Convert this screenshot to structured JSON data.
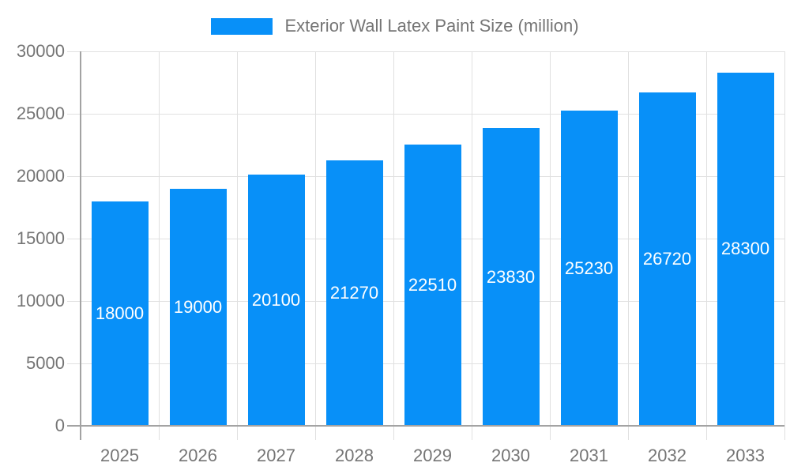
{
  "chart_data": {
    "type": "bar",
    "legend": "Exterior Wall Latex Paint Size (million)",
    "categories": [
      "2025",
      "2026",
      "2027",
      "2028",
      "2029",
      "2030",
      "2031",
      "2032",
      "2033"
    ],
    "values": [
      18000,
      19000,
      20100,
      21270,
      22510,
      23830,
      25230,
      26720,
      28300
    ],
    "ylim": [
      0,
      30000
    ],
    "yticks": [
      0,
      5000,
      10000,
      15000,
      20000,
      25000,
      30000
    ],
    "grid": "on",
    "legend_position": "top-center",
    "value_labels": "inside-center",
    "colors": {
      "bar": "#0890f8",
      "bar_label": "#ffffff",
      "axis_text": "#757575",
      "gridline": "#e0e0e0",
      "axis_line": "#a3a3a3",
      "background": "#ffffff"
    }
  }
}
